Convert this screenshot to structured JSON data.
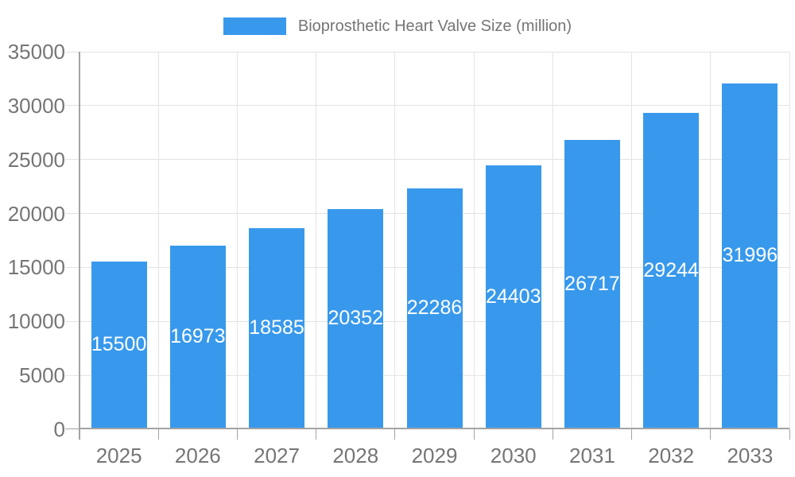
{
  "chart_data": {
    "type": "bar",
    "title": "Bioprosthetic Heart Valve Size (million)",
    "categories": [
      "2025",
      "2026",
      "2027",
      "2028",
      "2029",
      "2030",
      "2031",
      "2032",
      "2033"
    ],
    "values": [
      15500,
      16973,
      18585,
      20352,
      22286,
      24403,
      26717,
      29244,
      31996
    ],
    "series": [
      {
        "name": "Bioprosthetic Heart Valve Size (million)",
        "values": [
          15500,
          16973,
          18585,
          20352,
          22286,
          24403,
          26717,
          29244,
          31996
        ]
      }
    ],
    "xlabel": "",
    "ylabel": "",
    "ylim": [
      0,
      35000
    ],
    "yticks": [
      0,
      5000,
      10000,
      15000,
      20000,
      25000,
      30000,
      35000
    ],
    "grid": true,
    "legend_position": "top",
    "bar_labels_inside": true
  },
  "colors": {
    "bar": "#3899EC",
    "bar_label": "#FFFFFF",
    "grid": "#E3E3E3",
    "axis": "#A3A3A3",
    "text": "#757575",
    "background": "#FFFFFF"
  }
}
